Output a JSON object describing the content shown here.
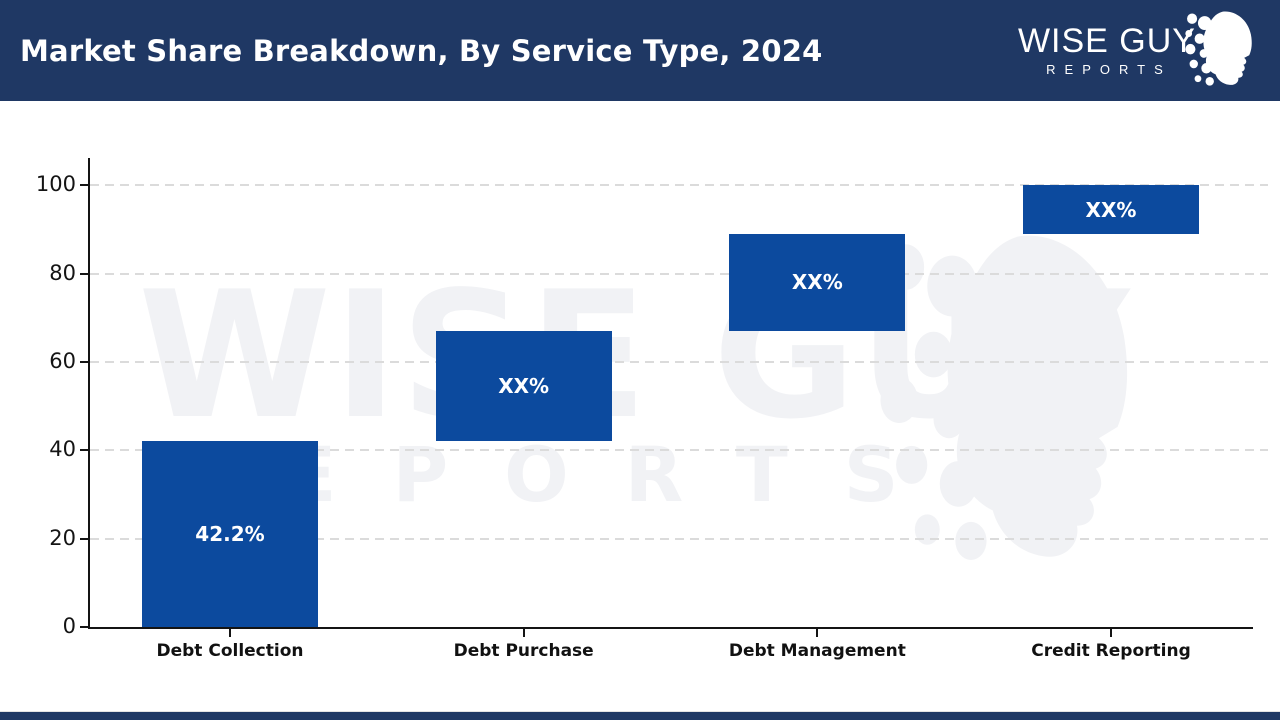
{
  "header": {
    "title": "Market Share Breakdown, By Service Type, 2024",
    "logo": {
      "line1": "WISE GUY",
      "line2": "REPORTS"
    }
  },
  "watermark": {
    "line1": "WISE GUY",
    "line2": "REPORTS"
  },
  "chart_data": {
    "type": "bar",
    "subtype": "waterfall",
    "title": "Market Share Breakdown, By Service Type, 2024",
    "categories": [
      "Debt Collection",
      "Debt Purchase",
      "Debt Management",
      "Credit Reporting"
    ],
    "bars": [
      {
        "category": "Debt Collection",
        "start": 0,
        "end": 42.2,
        "label": "42.2%"
      },
      {
        "category": "Debt Purchase",
        "start": 42.2,
        "end": 67,
        "label": "XX%"
      },
      {
        "category": "Debt Management",
        "start": 67,
        "end": 89,
        "label": "XX%"
      },
      {
        "category": "Credit Reporting",
        "start": 89,
        "end": 100,
        "label": "XX%"
      }
    ],
    "xlabel": "",
    "ylabel": "",
    "y_ticks": [
      0,
      20,
      40,
      60,
      80,
      100
    ],
    "ylim": [
      0,
      104
    ],
    "grid": "horizontal-dashed",
    "legend": "none",
    "bar_color": "#0c4a9e",
    "label_color": "#ffffff"
  }
}
